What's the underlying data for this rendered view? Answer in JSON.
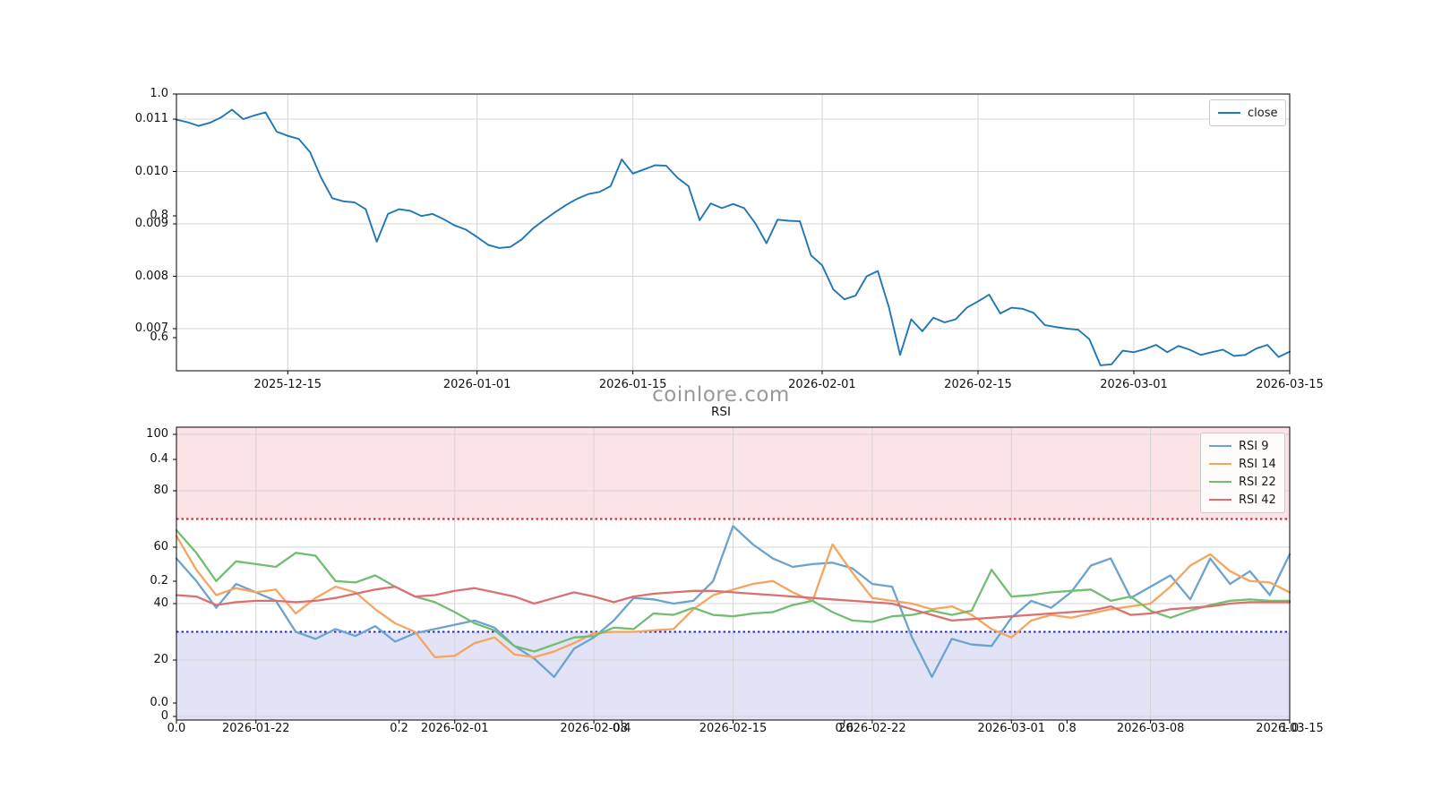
{
  "watermark": "coinlore.com",
  "colors": {
    "close": "#1f77b4",
    "rsi9": "#6ba3d0",
    "rsi14": "#f5a55f",
    "rsi22": "#72bd72",
    "rsi42": "#da7070",
    "overbought_line": "#e0162b",
    "oversold_line": "#2424dd",
    "overbought_band": "#fce3e5",
    "oversold_band": "#e3e3f7",
    "grid": "#d4d4d4",
    "spine": "#000000",
    "watermark_color": "#999999"
  },
  "overlay_axis": {
    "x_ticks": [
      "0.0",
      "0.2",
      "0.4",
      "0.6",
      "0.8",
      "1.0"
    ],
    "y_ticks": [
      "1.0",
      "0.8",
      "0.6",
      "0.4",
      "0.2",
      "0.0"
    ]
  },
  "chart_data": [
    {
      "type": "line",
      "name": "price",
      "legend_position": "upper right",
      "grid": true,
      "x_start": "2025-12-05",
      "x_end": "2026-03-15",
      "frequency": "daily",
      "ylim": [
        0.0062,
        0.01148
      ],
      "y_tick_labels": [
        "0.011",
        "0.010",
        "0.009",
        "0.008",
        "0.007"
      ],
      "y_tick_values": [
        0.011,
        0.01,
        0.009,
        0.008,
        0.007
      ],
      "x_tick_labels": [
        "2025-12-15",
        "2026-01-01",
        "2026-01-15",
        "2026-02-01",
        "2026-02-15",
        "2026-03-01",
        "2026-03-15"
      ],
      "x_tick_days": [
        10,
        27,
        41,
        58,
        72,
        86,
        100
      ],
      "series": [
        {
          "name": "close",
          "color": "#1f77b4",
          "values": [
            0.01099,
            0.01094,
            0.01087,
            0.01093,
            0.01103,
            0.01118,
            0.011,
            0.01107,
            0.01113,
            0.01076,
            0.01068,
            0.01062,
            0.01037,
            0.00988,
            0.00949,
            0.00943,
            0.00941,
            0.00928,
            0.00866,
            0.00919,
            0.00928,
            0.00925,
            0.00915,
            0.00919,
            0.00909,
            0.00897,
            0.00889,
            0.00875,
            0.0086,
            0.00854,
            0.00856,
            0.0087,
            0.00891,
            0.00907,
            0.00922,
            0.00936,
            0.00948,
            0.00957,
            0.00961,
            0.00972,
            0.01023,
            0.00996,
            0.01004,
            0.01012,
            0.01011,
            0.00988,
            0.00972,
            0.00907,
            0.00939,
            0.0093,
            0.00938,
            0.0093,
            0.00901,
            0.00863,
            0.00908,
            0.00906,
            0.00905,
            0.0084,
            0.00821,
            0.00775,
            0.00756,
            0.00763,
            0.008,
            0.0081,
            0.00741,
            0.0065,
            0.00718,
            0.00695,
            0.00721,
            0.00712,
            0.00718,
            0.0074,
            0.00752,
            0.00765,
            0.00729,
            0.0074,
            0.00738,
            0.0073,
            0.00707,
            0.00703,
            0.007,
            0.00698,
            0.0068,
            0.0063,
            0.00632,
            0.00658,
            0.00655,
            0.00661,
            0.00669,
            0.00655,
            0.00667,
            0.0066,
            0.0065,
            0.00655,
            0.0066,
            0.00648,
            0.0065,
            0.00662,
            0.00669,
            0.00646,
            0.00656
          ]
        }
      ]
    },
    {
      "type": "line",
      "name": "rsi",
      "title": "RSI",
      "legend_position": "upper right",
      "grid": true,
      "x_start": "2026-01-18",
      "x_end": "2026-03-15",
      "frequency": "daily",
      "ylim": [
        0,
        100
      ],
      "y_tick_labels": [
        "100",
        "80",
        "60",
        "40",
        "20",
        "0"
      ],
      "y_tick_values": [
        100,
        80,
        60,
        40,
        20,
        0
      ],
      "x_tick_labels": [
        "2026-01-22",
        "2026-02-01",
        "2026-02-08",
        "2026-02-15",
        "2026-02-22",
        "2026-03-01",
        "2026-03-08",
        "2026-03-15"
      ],
      "x_tick_days": [
        4,
        14,
        21,
        28,
        35,
        42,
        49,
        56
      ],
      "overbought_level": 70,
      "oversold_level": 30,
      "series": [
        {
          "name": "RSI 9",
          "color": "#6ba3d0",
          "values": [
            56,
            48,
            38.5,
            47,
            44,
            41,
            30,
            27.5,
            31,
            28.5,
            32,
            26.5,
            29.5,
            31,
            32.5,
            34,
            31.5,
            25,
            20.5,
            14,
            24,
            28,
            34,
            42,
            41.5,
            40,
            41,
            48,
            67.5,
            61,
            56,
            53,
            54,
            54.5,
            52.5,
            47,
            46,
            28,
            14,
            27.5,
            25.5,
            25,
            35,
            41,
            38.5,
            44,
            53.5,
            56,
            42,
            46,
            50,
            41.5,
            56,
            47,
            51.5,
            43,
            57.5
          ]
        },
        {
          "name": "RSI 14",
          "color": "#f5a55f",
          "values": [
            64,
            52,
            43,
            45.5,
            44,
            45,
            36.5,
            42,
            46,
            44,
            38,
            33,
            30,
            21,
            21.5,
            26,
            28,
            22,
            21,
            23,
            26,
            29.5,
            30,
            30,
            30.5,
            31,
            38,
            43,
            45,
            47,
            48,
            44,
            41,
            61,
            51,
            42,
            41,
            40,
            38,
            39,
            36,
            31,
            28,
            34,
            36,
            35,
            36.5,
            38,
            39,
            40,
            46,
            53.5,
            57.5,
            51.5,
            48,
            47.5,
            44
          ]
        },
        {
          "name": "RSI 22",
          "color": "#72bd72",
          "values": [
            66,
            58,
            48,
            55,
            54,
            53,
            58,
            57,
            48,
            47.5,
            50,
            46,
            42.5,
            40.5,
            37,
            33,
            30.5,
            25,
            23,
            25.5,
            28,
            28.5,
            31.5,
            31,
            36.5,
            36,
            38.5,
            36,
            35.5,
            36.5,
            37,
            39.5,
            41,
            37,
            34,
            33.5,
            35.5,
            36,
            37.5,
            36,
            37.5,
            52,
            42.5,
            43,
            44,
            44.5,
            45,
            41,
            42.5,
            37.5,
            35,
            37.5,
            39.5,
            41,
            41.5,
            41,
            41
          ]
        },
        {
          "name": "RSI 42",
          "color": "#da7070",
          "values": [
            43,
            42.5,
            39.5,
            40.5,
            41,
            41,
            40.5,
            41,
            42,
            43.5,
            45,
            46,
            42.5,
            43,
            44.5,
            45.5,
            44,
            42.5,
            40,
            42,
            44,
            42.5,
            40.5,
            42.5,
            43.5,
            44,
            44.5,
            44.5,
            44,
            43.5,
            43,
            42.5,
            42,
            41.5,
            41,
            40.5,
            40,
            38,
            36,
            34,
            34.5,
            35,
            35.5,
            36,
            36.5,
            37,
            37.5,
            39,
            36,
            36.5,
            38,
            38.5,
            39,
            40,
            40.5,
            40.5,
            40.5
          ]
        }
      ]
    }
  ]
}
